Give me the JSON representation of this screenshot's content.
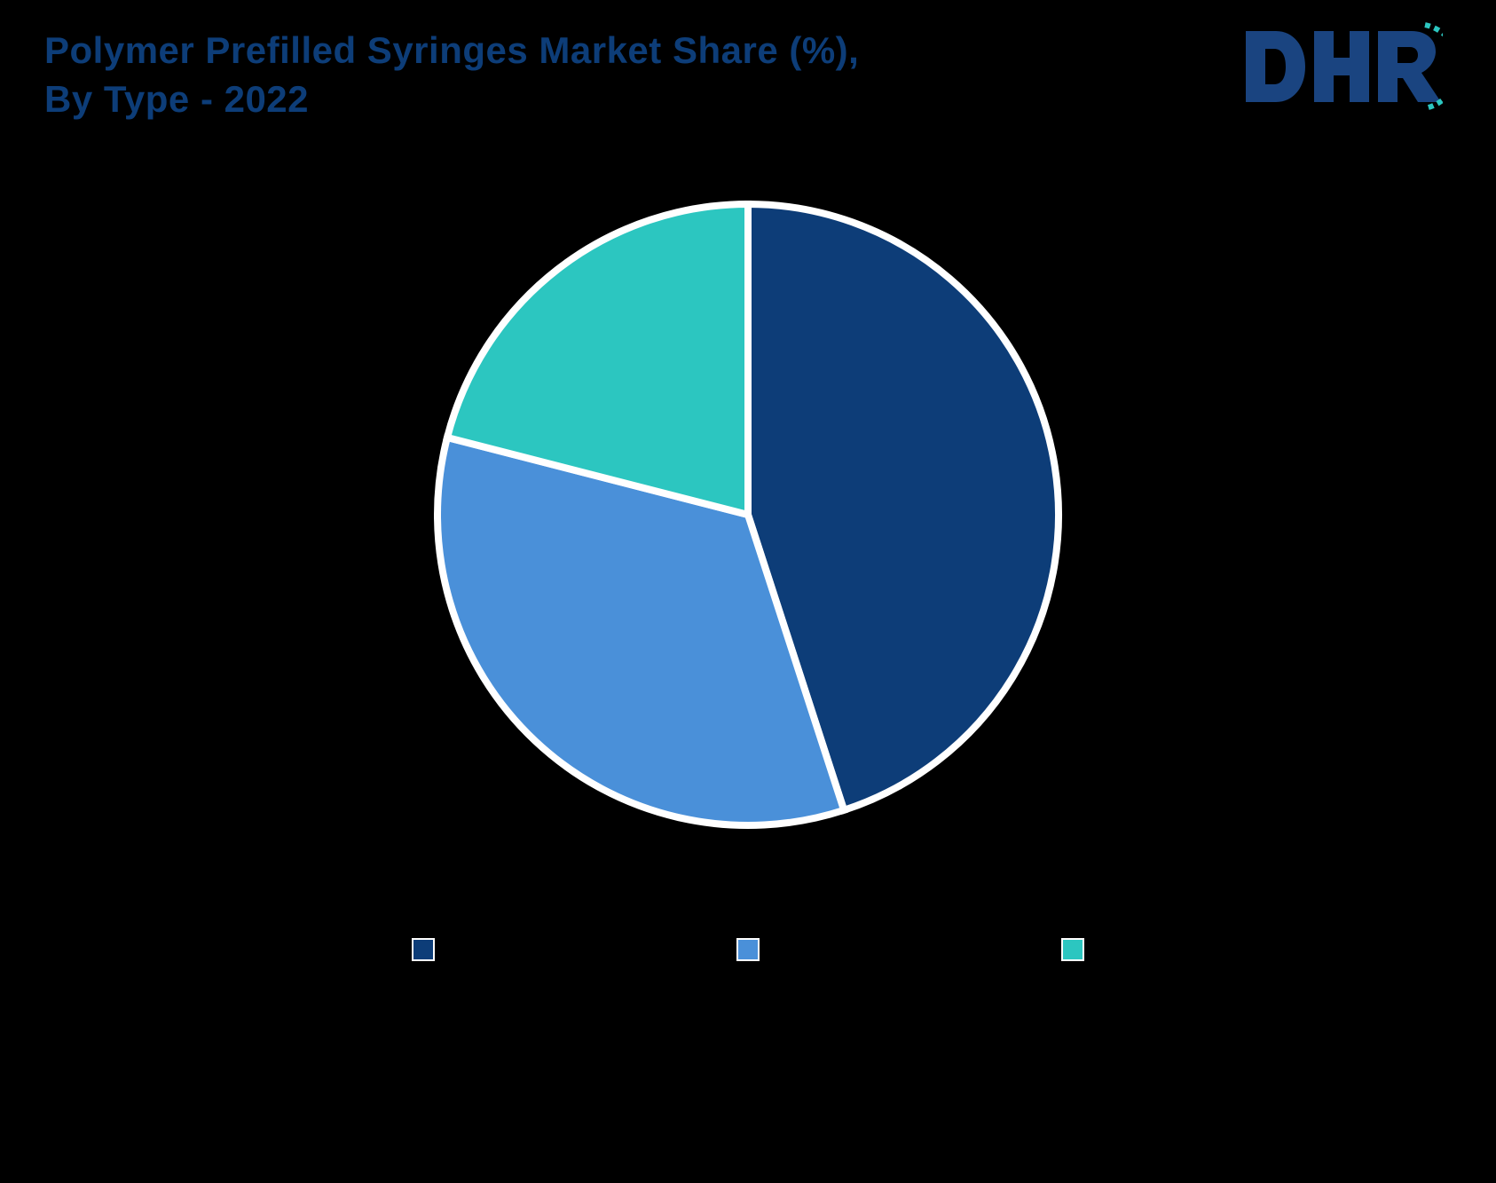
{
  "title_line1": "Polymer Prefilled Syringes Market Share (%),",
  "title_line2": "By Type - 2022",
  "title_color": "#0d3d78",
  "title_fontsize": 42,
  "logo": {
    "text": "DHR",
    "primary_color": "#1a4480",
    "accent_color": "#2cc6c0"
  },
  "chart": {
    "type": "pie",
    "background_color": "#000000",
    "radius": 350,
    "stroke_color": "#ffffff",
    "stroke_width": 8,
    "slices": [
      {
        "label": "",
        "value": 45,
        "color": "#0d3d78"
      },
      {
        "label": "",
        "value": 34,
        "color": "#4a90d9"
      },
      {
        "label": "",
        "value": 21,
        "color": "#2cc6c0"
      }
    ]
  },
  "legend": {
    "swatch_border": "#ffffff",
    "items": [
      {
        "color": "#0d3d78"
      },
      {
        "color": "#4a90d9"
      },
      {
        "color": "#2cc6c0"
      }
    ]
  }
}
